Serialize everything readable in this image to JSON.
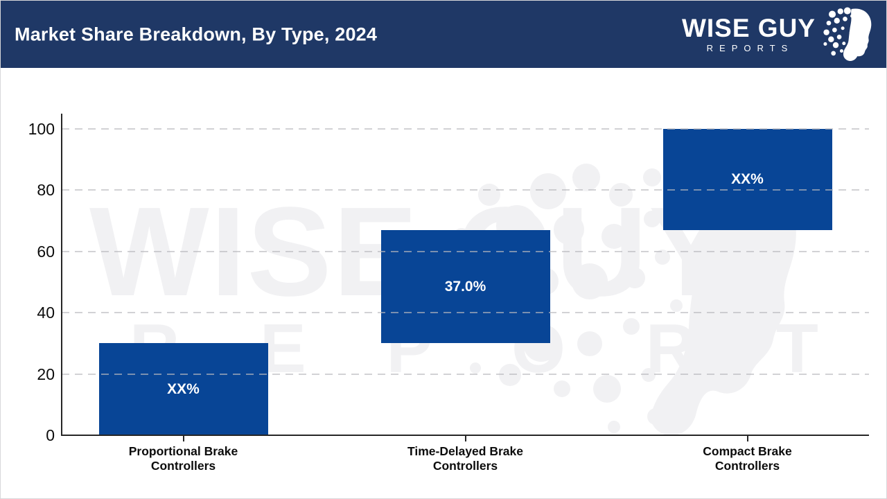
{
  "header": {
    "title": "Market Share Breakdown, By Type, 2024",
    "bg_color": "#1f3866",
    "logo": {
      "line1": "WISE GUY",
      "line2": "REPORTS",
      "face_icon": "dotted-head-profile"
    }
  },
  "watermark": {
    "line1": "WISE GUY",
    "line2": "R E P O R T S",
    "face_icon": "dotted-head-profile"
  },
  "chart_data": {
    "type": "bar",
    "subtype": "floating-segment-waterfall",
    "title": "Market Share Breakdown, By Type, 2024",
    "xlabel": "",
    "ylabel": "",
    "categories": [
      "Proportional Brake Controllers",
      "Time-Delayed Brake Controllers",
      "Compact Brake Controllers"
    ],
    "category_display_lines": [
      "Proportional Brake\nControllers",
      "Time-Delayed Brake\nControllers",
      "Compact Brake\nControllers"
    ],
    "series": [
      {
        "name": "Market Share (%)",
        "segments": [
          {
            "category": "Proportional Brake Controllers",
            "base": 0,
            "top": 30,
            "label": "XX%"
          },
          {
            "category": "Time-Delayed Brake Controllers",
            "base": 30,
            "top": 67,
            "label": "37.0%"
          },
          {
            "category": "Compact Brake Controllers",
            "base": 67,
            "top": 100,
            "label": "XX%"
          }
        ]
      }
    ],
    "yticks": [
      0,
      20,
      40,
      60,
      80,
      100
    ],
    "ylim": [
      0,
      105
    ],
    "grid": "horizontal-dashed",
    "legend": "none",
    "bar_color": "#084596",
    "bar_label_color": "#ffffff",
    "axis_color": "#262626",
    "gridline_color": "#c9c9cd"
  }
}
